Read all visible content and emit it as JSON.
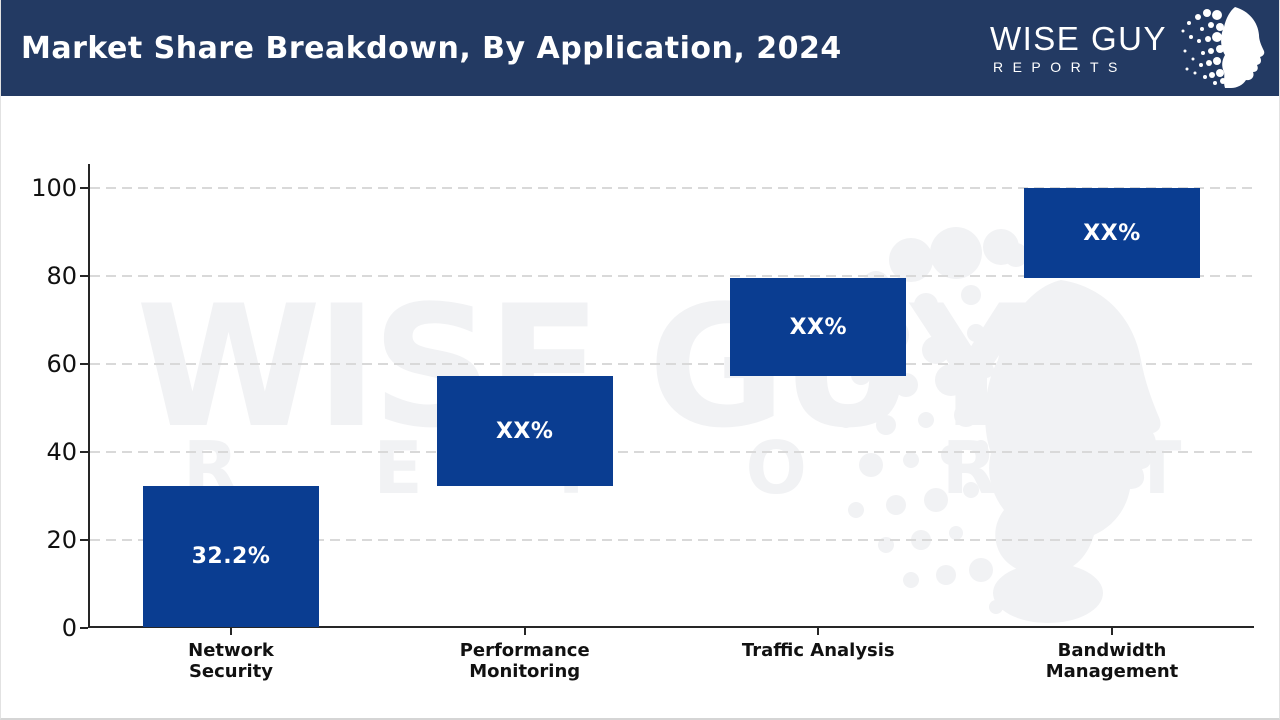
{
  "header": {
    "title": "Market Share Breakdown, By Application, 2024",
    "logo": {
      "brand_line1": "WISE GUY",
      "brand_line2": "REPORTS"
    }
  },
  "watermark": {
    "line1": "WISE GUY",
    "line2": "R E P O R T S"
  },
  "colors": {
    "header_bg": "#233a63",
    "title_text": "#ffffff",
    "bar_fill": "#0a3d91",
    "bar_label_text": "#ffffff",
    "gridline": "#d9d9d9",
    "axis": "#262626",
    "tick_text": "#111111",
    "watermark": "#f1f2f4"
  },
  "chart_data": {
    "type": "bar",
    "subtype": "waterfall-floating-bars",
    "title": "Market Share Breakdown, By Application, 2024",
    "categories": [
      "Network Security",
      "Performance Monitoring",
      "Traffic Analysis",
      "Bandwidth Management"
    ],
    "bars": [
      {
        "category": "Network Security",
        "start": 0,
        "end": 32.2,
        "label": "32.2%"
      },
      {
        "category": "Performance Monitoring",
        "start": 32.2,
        "end": 57.2,
        "label": "XX%"
      },
      {
        "category": "Traffic Analysis",
        "start": 57.2,
        "end": 79.5,
        "label": "XX%"
      },
      {
        "category": "Bandwidth Management",
        "start": 79.5,
        "end": 100,
        "label": "XX%"
      }
    ],
    "segment_values_pct": [
      32.2,
      25.0,
      22.3,
      20.5
    ],
    "xlabel": "",
    "ylabel": "",
    "yticks": [
      0,
      20,
      40,
      60,
      80,
      100
    ],
    "ylim": [
      0,
      105
    ],
    "grid": "horizontal-dashed",
    "legend": "none",
    "bar_color": "#0a3d91"
  }
}
